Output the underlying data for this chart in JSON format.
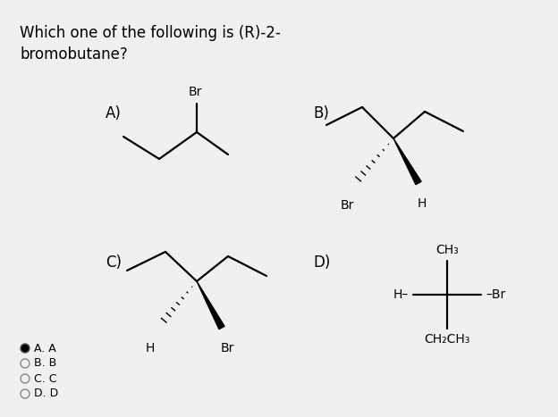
{
  "title_line1": "Which one of the following is (R)-2-",
  "title_line2": "bromobutane?",
  "background_color": "#f0f0f0",
  "text_color": "#000000",
  "options": [
    "A. A",
    "B. B",
    "C. C",
    "D. D"
  ],
  "selected_option": 0,
  "label_A": "A)",
  "label_B": "B)",
  "label_C": "C)",
  "label_D": "D)",
  "lw_plain": 1.6,
  "lw_wedge": 2.2,
  "fs_title": 12,
  "fs_label": 12,
  "fs_mol": 10,
  "fs_radio": 9
}
